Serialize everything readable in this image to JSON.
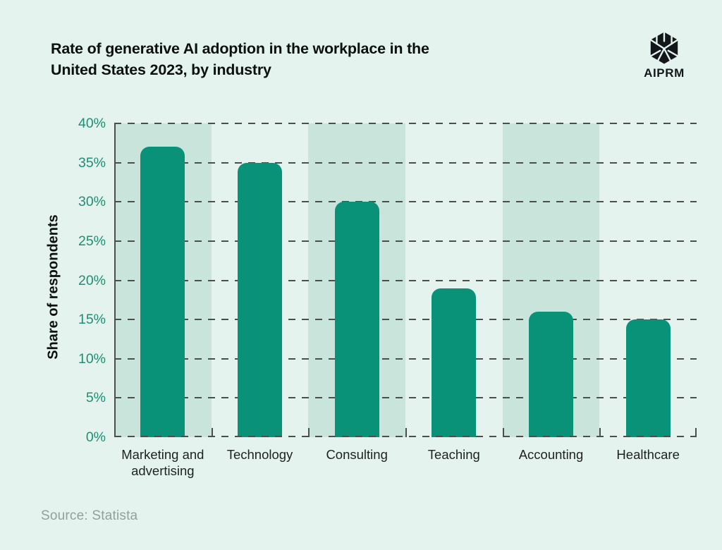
{
  "page": {
    "background": "#e5f3ee"
  },
  "header": {
    "title_line1": "Rate of generative AI adoption in the workplace in the",
    "title_line2": "United States 2023, by industry",
    "brand": {
      "name": "AIPRM",
      "icon": "aiprm-hexagon-logo"
    }
  },
  "chart_data": {
    "type": "bar",
    "title": "Rate of generative AI adoption in the workplace in the United States 2023, by industry",
    "categories": [
      "Marketing and advertising",
      "Technology",
      "Consulting",
      "Teaching",
      "Accounting",
      "Healthcare"
    ],
    "values": [
      37,
      35,
      30,
      19,
      16,
      15
    ],
    "unit": "%",
    "xlabel": "",
    "ylabel": "Share of respondents",
    "ylim": [
      0,
      40
    ],
    "ytick_step": 5,
    "ytick_labels": [
      "40%",
      "35%",
      "30%",
      "25%",
      "20%",
      "15%",
      "10%",
      "5%",
      "0%"
    ],
    "grid": "horizontal-dashed",
    "legend": "none",
    "banded_columns": [
      0,
      2,
      4
    ],
    "colors": {
      "bar": "#0a9278",
      "band": "#c9e4db",
      "grid": "#4b4e4d",
      "tick_label": "#1f8e73",
      "category_label": "#1d2220"
    }
  },
  "footer": {
    "source": "Source: Statista"
  }
}
